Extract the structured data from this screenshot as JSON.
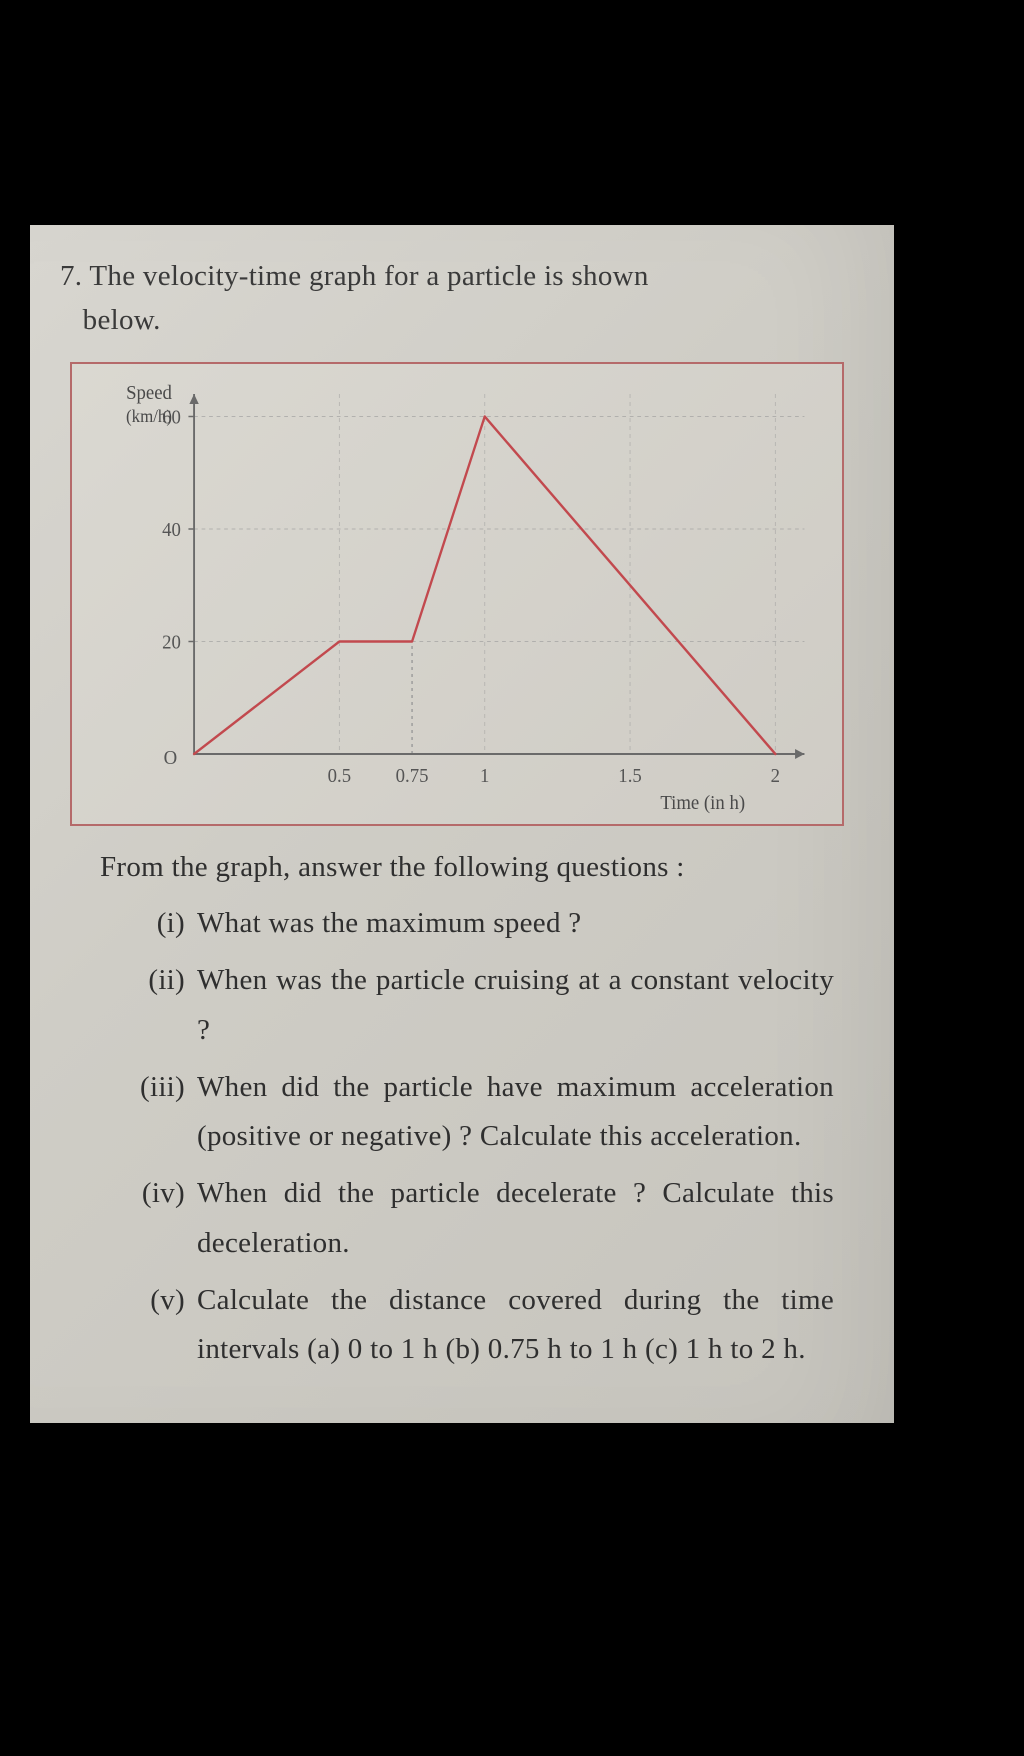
{
  "question": {
    "number": "7.",
    "intro_line1": "The velocity-time graph for a particle is shown",
    "intro_line2": "below.",
    "answers_intro": "From the graph, answer the following questions :",
    "items": [
      {
        "num": "(i)",
        "text": "What was the maximum speed ?"
      },
      {
        "num": "(ii)",
        "text": "When was the particle cruising at a constant velocity ?"
      },
      {
        "num": "(iii)",
        "text": "When did the particle have maximum acceleration (positive or negative) ? Calculate this acceleration."
      },
      {
        "num": "(iv)",
        "text": "When did the particle decelerate ? Calculate this deceleration."
      },
      {
        "num": "(v)",
        "text": "Calculate the distance covered during the time intervals (a) 0 to 1 h (b) 0.75 h to 1 h (c) 1 h to 2 h."
      }
    ]
  },
  "chart": {
    "type": "line",
    "y_axis_label_l1": "Speed",
    "y_axis_label_l2": "(km/h)",
    "x_axis_label": "Time (in h)",
    "x_ticks": [
      {
        "v": 0.5,
        "label": "0.5"
      },
      {
        "v": 0.75,
        "label": "0.75"
      },
      {
        "v": 1,
        "label": "1"
      },
      {
        "v": 1.5,
        "label": "1.5"
      },
      {
        "v": 2,
        "label": "2"
      }
    ],
    "y_ticks": [
      {
        "v": 20,
        "label": "20"
      },
      {
        "v": 40,
        "label": "40"
      },
      {
        "v": 60,
        "label": "60"
      }
    ],
    "origin_label": "O",
    "xlim": [
      0,
      2.1
    ],
    "ylim": [
      0,
      64
    ],
    "points": [
      {
        "x": 0,
        "y": 0
      },
      {
        "x": 0.5,
        "y": 20
      },
      {
        "x": 0.75,
        "y": 20
      },
      {
        "x": 1,
        "y": 60
      },
      {
        "x": 2,
        "y": 0
      }
    ],
    "dashed_vertical_at_x": 0.75,
    "colors": {
      "frame": "#b06868",
      "axis": "#6a6a6a",
      "grid": "#9a9a9a",
      "dashed": "#9a9a9a",
      "line": "#c2494e",
      "tick_text": "#555555",
      "label_text": "#4a4a4a"
    },
    "line_width": 2.5,
    "tick_fontsize": 20,
    "label_fontsize": 20
  }
}
